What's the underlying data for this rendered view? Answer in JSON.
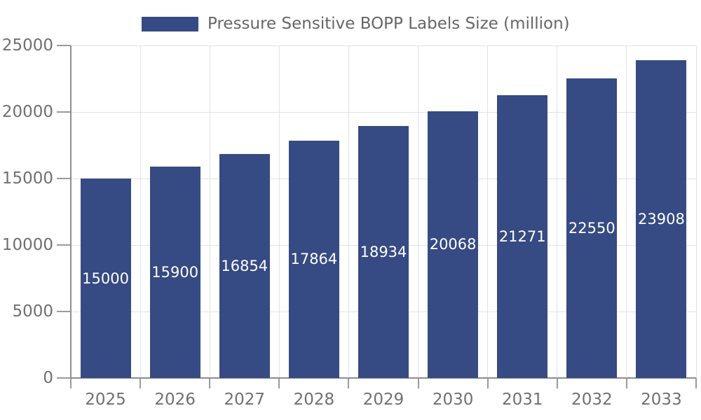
{
  "chart_data": {
    "type": "bar",
    "title": "Pressure Sensitive BOPP Labels Size (million)",
    "legend_entries": [
      "Pressure Sensitive BOPP Labels Size (million)"
    ],
    "legend_position": "top",
    "categories": [
      "2025",
      "2026",
      "2027",
      "2028",
      "2029",
      "2030",
      "2031",
      "2032",
      "2033"
    ],
    "series": [
      {
        "name": "Pressure Sensitive BOPP Labels Size (million)",
        "values": [
          15000,
          15900,
          16854,
          17864,
          18934,
          20068,
          21271,
          22550,
          23908
        ]
      }
    ],
    "value_labels_shown": true,
    "xlabel": "",
    "ylabel": "",
    "ylim": [
      0,
      25000
    ],
    "yticks": [
      0,
      5000,
      10000,
      15000,
      20000,
      25000
    ],
    "grid": true
  },
  "colors": {
    "bar": "#364A83",
    "axis_line": "#8d8d92",
    "tick_mark": "#9a9aa0",
    "gridline": "#e1e2e7",
    "tick_label": "#707070",
    "legend_text": "#666666",
    "value_label": "#ffffff",
    "background": "#ffffff"
  }
}
